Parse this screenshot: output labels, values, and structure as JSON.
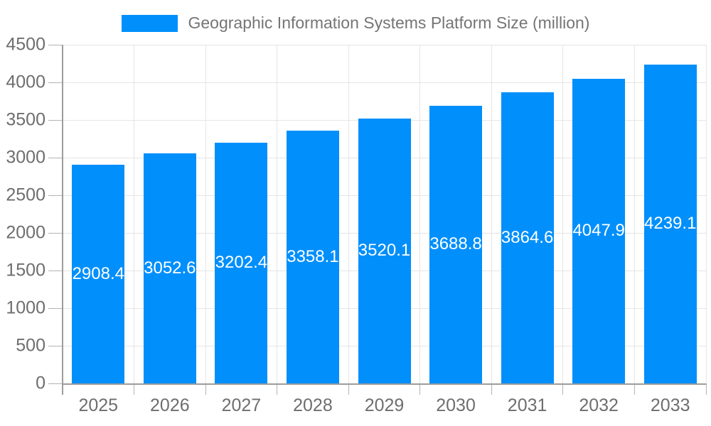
{
  "chart_data": {
    "type": "bar",
    "title": "Geographic Information Systems Platform Size (million)",
    "categories": [
      "2025",
      "2026",
      "2027",
      "2028",
      "2029",
      "2030",
      "2031",
      "2032",
      "2033"
    ],
    "values": [
      2908.4,
      3052.6,
      3202.4,
      3358.1,
      3520.1,
      3688.8,
      3864.6,
      4047.9,
      4239.1
    ],
    "series": [
      {
        "name": "Geographic Information Systems Platform Size (million)",
        "values": [
          2908.4,
          3052.6,
          3202.4,
          3358.1,
          3520.1,
          3688.8,
          3864.6,
          4047.9,
          4239.1
        ]
      }
    ],
    "xlabel": "",
    "ylabel": "",
    "ylim": [
      0,
      4500
    ],
    "ytick_values": [
      0,
      500,
      1000,
      1500,
      2000,
      2500,
      3000,
      3500,
      4000,
      4500
    ],
    "ytick_labels": [
      "0",
      "500",
      "1000",
      "1500",
      "2000",
      "2500",
      "3000",
      "3500",
      "4000",
      "4500"
    ],
    "grid": true,
    "legend_position": "top",
    "value_labels": [
      "2908.4",
      "3052.6",
      "3202.4",
      "3358.1",
      "3520.1",
      "3688.8",
      "3864.6",
      "4047.9",
      "4239.1"
    ],
    "value_label_placement": "inside-middle",
    "colors": {
      "bar": "#008FFB",
      "grid": "#e5e5e5",
      "axis": "#9c9c9c",
      "tick": "#b3b3b3",
      "axis_text": "#6e6e6e",
      "legend_text": "#757575",
      "value_text": "#ffffff",
      "background": "#ffffff"
    }
  }
}
